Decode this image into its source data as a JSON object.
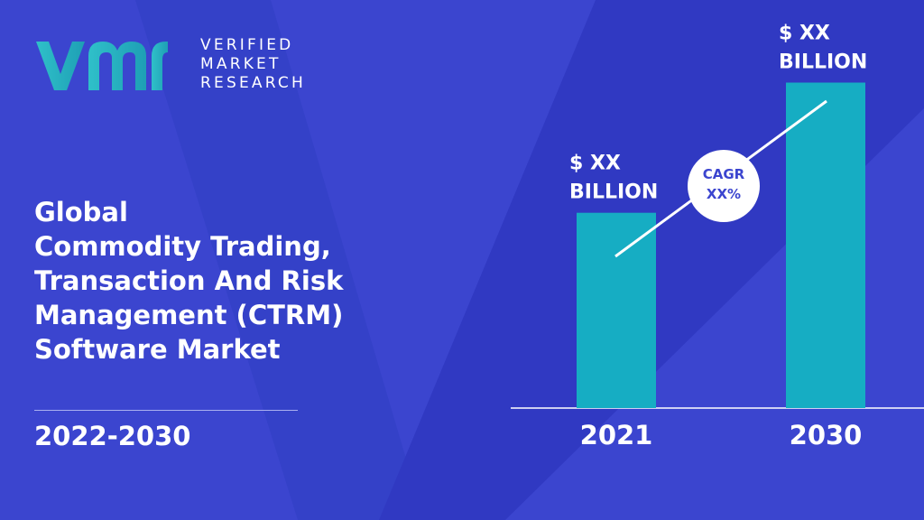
{
  "brand": {
    "lines": [
      "VERIFIED",
      "MARKET",
      "RESEARCH"
    ],
    "colors": {
      "logo_gradient_start": "#2fc0c9",
      "logo_gradient_end": "#1e9fb5"
    }
  },
  "title_lines": [
    "Global",
    "Commodity Trading,",
    "Transaction And Risk",
    "Management (CTRM)",
    "Software Market"
  ],
  "period": "2022-2030",
  "colors": {
    "background": "#3b45cf",
    "background_shape": "#3039c2",
    "bar": "#16adc3",
    "text": "#ffffff",
    "cagr_text": "#3b45cf"
  },
  "chart_data": {
    "type": "bar",
    "categories": [
      "2021",
      "2030"
    ],
    "values": [
      42,
      70
    ],
    "data_labels": [
      [
        "$ XX",
        "BILLION"
      ],
      [
        "$ XX",
        "BILLION"
      ]
    ],
    "annotation": [
      "CAGR",
      "XX%"
    ],
    "ylim": [
      0,
      80
    ],
    "grid": false,
    "title": "",
    "xlabel": "",
    "ylabel": ""
  }
}
